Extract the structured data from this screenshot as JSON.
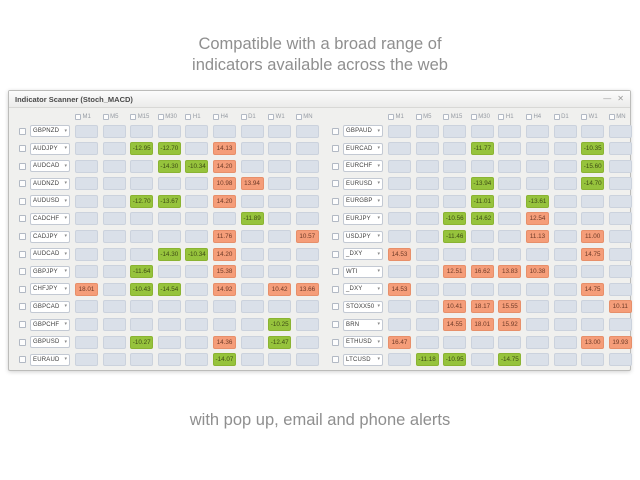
{
  "captions": {
    "top_line1": "Compatible with a broad range of",
    "top_line2": "indicators available across the web",
    "bottom": "with pop up, email and phone alerts"
  },
  "window": {
    "title": "Indicator Scanner (Stoch_MACD)",
    "minimize_icon": "—",
    "close_icon": "✕"
  },
  "timeframes": [
    "M1",
    "M5",
    "M15",
    "M30",
    "H1",
    "H4",
    "D1",
    "W1",
    "MN"
  ],
  "colors": {
    "cell_positive_bg": "#f59d79",
    "cell_negative_bg": "#96c33c",
    "cell_empty_bg": "#dae0e9"
  },
  "panels": [
    {
      "name": "left",
      "rows": [
        {
          "symbol": "GBPNZD",
          "values": [
            "",
            "",
            "",
            "",
            "",
            "",
            "",
            "",
            ""
          ]
        },
        {
          "symbol": "AUDJPY",
          "values": [
            "",
            "",
            "-12.95",
            "-12.70",
            "",
            "14.13",
            "",
            "",
            ""
          ]
        },
        {
          "symbol": "AUDCAD",
          "values": [
            "",
            "",
            "",
            "-14.30",
            "-10.34",
            "14.20",
            "",
            "",
            ""
          ]
        },
        {
          "symbol": "AUDNZD",
          "values": [
            "",
            "",
            "",
            "",
            "",
            "10.98",
            "13.94",
            "",
            ""
          ]
        },
        {
          "symbol": "AUDUSD",
          "values": [
            "",
            "",
            "-12.70",
            "-13.67",
            "",
            "14.20",
            "",
            "",
            ""
          ]
        },
        {
          "symbol": "CADCHF",
          "values": [
            "",
            "",
            "",
            "",
            "",
            "",
            "-11.89",
            "",
            ""
          ]
        },
        {
          "symbol": "CADJPY",
          "values": [
            "",
            "",
            "",
            "",
            "",
            "11.76",
            "",
            "",
            "10.57"
          ]
        },
        {
          "symbol": "AUDCAD",
          "values": [
            "",
            "",
            "",
            "-14.30",
            "-10.34",
            "14.20",
            "",
            "",
            ""
          ]
        },
        {
          "symbol": "GBPJPY",
          "values": [
            "",
            "",
            "-11.64",
            "",
            "",
            "15.38",
            "",
            "",
            ""
          ]
        },
        {
          "symbol": "CHFJPY",
          "values": [
            "18.01",
            "",
            "-10.43",
            "-14.54",
            "",
            "14.92",
            "",
            "10.42",
            "13.66"
          ]
        },
        {
          "symbol": "GBPCAD",
          "values": [
            "",
            "",
            "",
            "",
            "",
            "",
            "",
            "",
            ""
          ]
        },
        {
          "symbol": "GBPCHF",
          "values": [
            "",
            "",
            "",
            "",
            "",
            "",
            "",
            "-10.25",
            ""
          ]
        },
        {
          "symbol": "GBPUSD",
          "values": [
            "",
            "",
            "-10.27",
            "",
            "",
            "14.36",
            "",
            "-12.47",
            ""
          ]
        },
        {
          "symbol": "EURAUD",
          "values": [
            "",
            "",
            "",
            "",
            "",
            "-14.07",
            "",
            "",
            ""
          ]
        }
      ]
    },
    {
      "name": "right",
      "rows": [
        {
          "symbol": "GBPAUD",
          "values": [
            "",
            "",
            "",
            "",
            "",
            "",
            "",
            "",
            ""
          ]
        },
        {
          "symbol": "EURCAD",
          "values": [
            "",
            "",
            "",
            "-11.77",
            "",
            "",
            "",
            "-10.35",
            ""
          ]
        },
        {
          "symbol": "EURCHF",
          "values": [
            "",
            "",
            "",
            "",
            "",
            "",
            "",
            "-15.60",
            ""
          ]
        },
        {
          "symbol": "EURUSD",
          "values": [
            "",
            "",
            "",
            "-13.94",
            "",
            "",
            "",
            "-14.70",
            ""
          ]
        },
        {
          "symbol": "EURGBP",
          "values": [
            "",
            "",
            "",
            "-11.01",
            "",
            "-13.61",
            "",
            "",
            ""
          ]
        },
        {
          "symbol": "EURJPY",
          "values": [
            "",
            "",
            "-10.56",
            "-14.62",
            "",
            "12.54",
            "",
            "",
            ""
          ]
        },
        {
          "symbol": "USDJPY",
          "values": [
            "",
            "",
            "-11.46",
            "",
            "",
            "11.13",
            "",
            "11.00",
            ""
          ]
        },
        {
          "symbol": "_DXY",
          "values": [
            "14.53",
            "",
            "",
            "",
            "",
            "",
            "",
            "14.75",
            ""
          ]
        },
        {
          "symbol": "WTI",
          "values": [
            "",
            "",
            "12.51",
            "16.62",
            "13.83",
            "10.38",
            "",
            "",
            ""
          ]
        },
        {
          "symbol": "_DXY",
          "values": [
            "14.53",
            "",
            "",
            "",
            "",
            "",
            "",
            "14.75",
            ""
          ]
        },
        {
          "symbol": "STOXX50",
          "values": [
            "",
            "",
            "10.41",
            "18.17",
            "15.55",
            "",
            "",
            "",
            "10.11"
          ]
        },
        {
          "symbol": "BRN",
          "values": [
            "",
            "",
            "14.55",
            "18.01",
            "15.92",
            "",
            "",
            "",
            ""
          ]
        },
        {
          "symbol": "ETHUSD",
          "values": [
            "16.47",
            "",
            "",
            "",
            "",
            "",
            "",
            "13.00",
            "19.93"
          ]
        },
        {
          "symbol": "LTCUSD",
          "values": [
            "",
            "-11.18",
            "-10.95",
            "",
            "-14.75",
            "",
            "",
            "",
            ""
          ]
        }
      ]
    }
  ]
}
